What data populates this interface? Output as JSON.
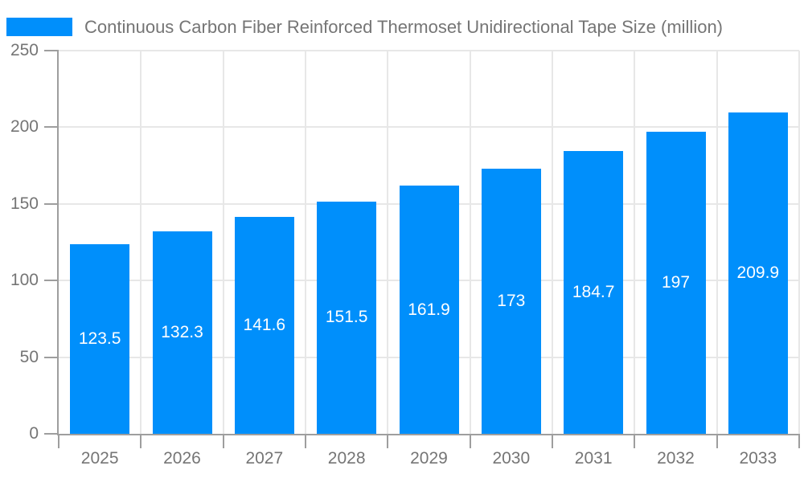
{
  "chart_data": {
    "type": "bar",
    "title": "Continuous Carbon Fiber Reinforced Thermoset Unidirectional Tape Size (million)",
    "categories": [
      "2025",
      "2026",
      "2027",
      "2028",
      "2029",
      "2030",
      "2031",
      "2032",
      "2033"
    ],
    "values": [
      123.5,
      132.3,
      141.6,
      151.5,
      161.9,
      173,
      184.7,
      197,
      209.9
    ],
    "value_labels": [
      "123.5",
      "132.3",
      "141.6",
      "151.5",
      "161.9",
      "173",
      "184.7",
      "197",
      "209.9"
    ],
    "xlabel": "",
    "ylabel": "",
    "ylim": [
      0,
      250
    ],
    "yticks": [
      0,
      50,
      100,
      150,
      200,
      250
    ],
    "grid": true,
    "legend_position": "top-left",
    "colors": {
      "bar": "#008FFB",
      "bar_label": "#ffffff",
      "axis": "#9e9e9e",
      "grid": "#e7e7e7",
      "tick_label": "#757575",
      "title": "#757575",
      "background": "#ffffff"
    }
  }
}
